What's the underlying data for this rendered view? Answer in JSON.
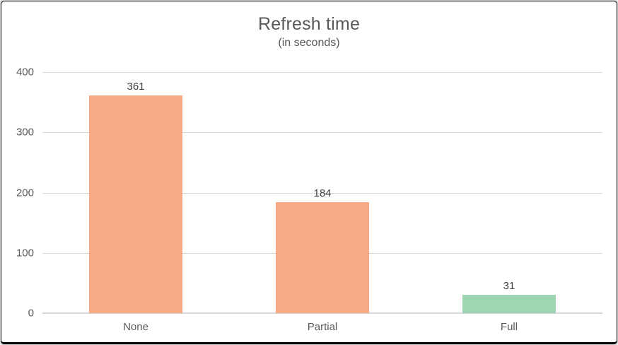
{
  "chart": {
    "title": "Refresh time",
    "subtitle": "(in seconds)"
  },
  "chart_data": {
    "type": "bar",
    "title": "Refresh time",
    "subtitle": "(in seconds)",
    "categories": [
      "None",
      "Partial",
      "Full"
    ],
    "values": [
      361,
      184,
      31
    ],
    "data_labels": [
      "361",
      "184",
      "31"
    ],
    "bar_colors": [
      "#f6ab84",
      "#f6ab84",
      "#9ed5b2"
    ],
    "xlabel": "",
    "ylabel": "",
    "ylim": [
      0,
      400
    ],
    "yticks": [
      0,
      100,
      200,
      300,
      400
    ],
    "grid": "horizontal",
    "legend": "none",
    "colors": {
      "title_text": "#595959",
      "axis_text": "#595959",
      "value_label_text": "#404040",
      "gridline": "#d9d9d9",
      "axis_line": "#d6d6d6",
      "frame_border": "#000000",
      "background": "#ffffff"
    }
  }
}
